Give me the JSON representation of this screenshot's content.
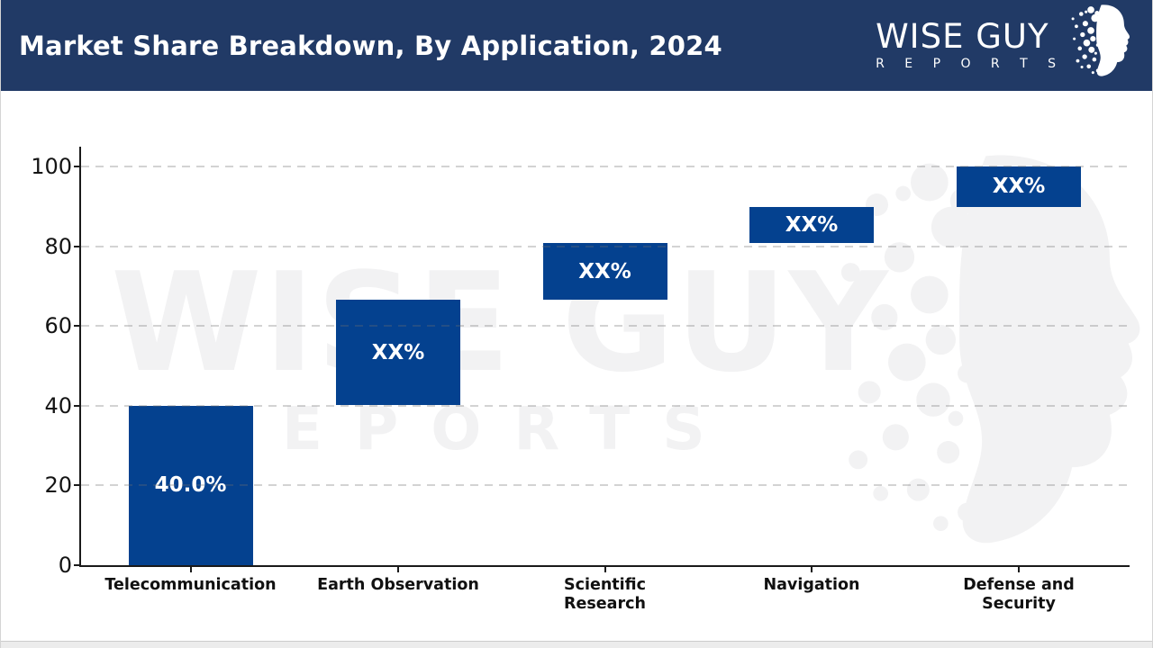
{
  "header": {
    "title": "Market Share Breakdown, By Application, 2024",
    "logo": {
      "line1": "WISE GUY",
      "line2": "R E P O R T S"
    }
  },
  "watermark": {
    "line1": "WISE GUY",
    "line2": "REPORTS"
  },
  "colors": {
    "header_bg": "#213a66",
    "bar": "#04418f",
    "axis": "#1a1a1a",
    "watermark": "#f2f2f3"
  },
  "chart_data": {
    "type": "bar",
    "subtype": "floating-waterfall",
    "title": "Market Share Breakdown, By Application, 2024",
    "categories": [
      "Telecommunication",
      "Earth Observation",
      "Scientific\nResearch",
      "Navigation",
      "Defense and\nSecurity"
    ],
    "segments": [
      {
        "category": "Telecommunication",
        "start": 0,
        "end": 40,
        "label": "40.0%"
      },
      {
        "category": "Earth Observation",
        "start": 40,
        "end": 66.5,
        "label": "XX%"
      },
      {
        "category": "Scientific Research",
        "start": 66.5,
        "end": 80.7,
        "label": "XX%"
      },
      {
        "category": "Navigation",
        "start": 80.7,
        "end": 89.9,
        "label": "XX%"
      },
      {
        "category": "Defense and Security",
        "start": 89.9,
        "end": 100,
        "label": "XX%"
      }
    ],
    "yticks": [
      0,
      20,
      40,
      60,
      80,
      100
    ],
    "ylim": [
      0,
      105
    ],
    "xlabel": "",
    "ylabel": "",
    "grid": "horizontal-dashed",
    "legend": "none",
    "bar_label_color": "#ffffff"
  }
}
